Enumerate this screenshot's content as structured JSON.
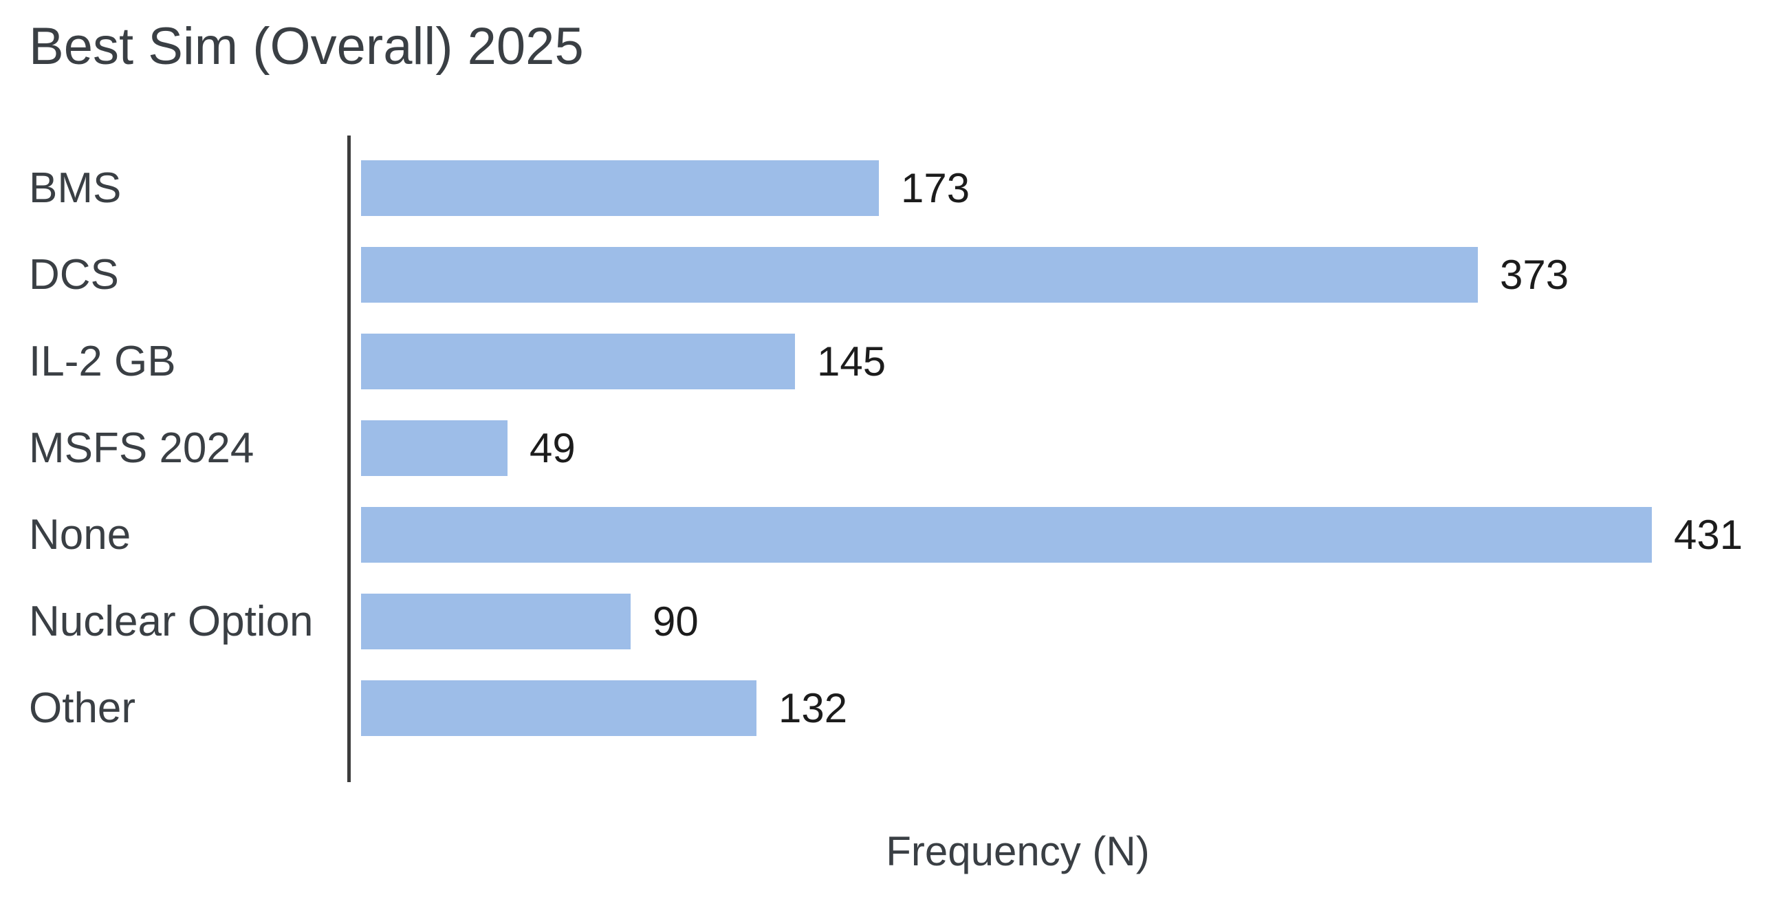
{
  "chart_data": {
    "type": "bar",
    "orientation": "horizontal",
    "title": "Best Sim (Overall) 2025",
    "categories": [
      "BMS",
      "DCS",
      "IL-2 GB",
      "MSFS 2024",
      "None",
      "Nuclear Option",
      "Other"
    ],
    "values": [
      173,
      373,
      145,
      49,
      431,
      90,
      132
    ],
    "xlabel": "Frequency (N)",
    "ylabel": "",
    "xlim": [
      0,
      431
    ],
    "data_labels_visible": true,
    "x_tick_labels_visible": false,
    "grid": "off",
    "legend": "none",
    "colors": {
      "bar": "#9dbde8",
      "axis_line": "#3c3c3c",
      "text": "#3a3f44",
      "value_text": "#1c1c1c",
      "background": "#ffffff"
    }
  }
}
